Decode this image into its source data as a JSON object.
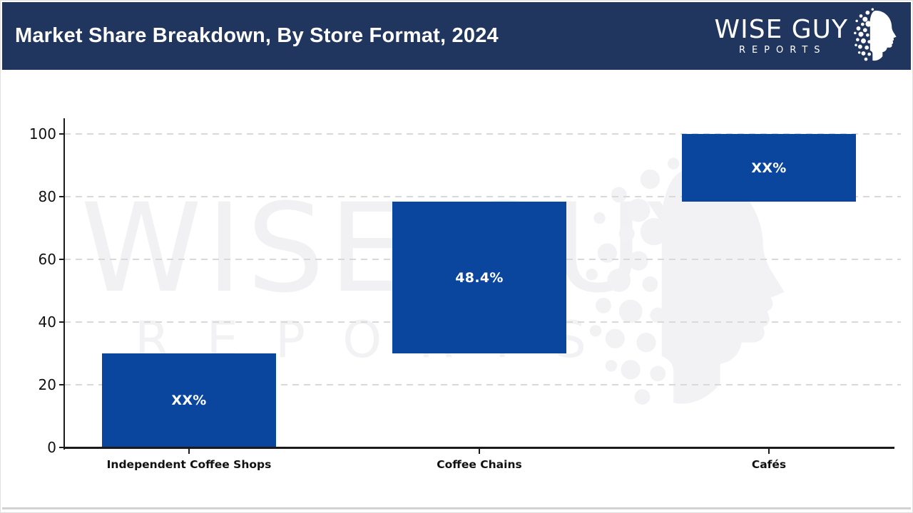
{
  "header": {
    "title": "Market Share Breakdown, By Store Format, 2024",
    "bg_color": "#21365f",
    "logo": {
      "wordmark": "WISE GUY",
      "subtext": "REPORTS"
    }
  },
  "watermark": {
    "wordmark": "WISE GUY",
    "subtext": "REPORTS"
  },
  "chart_data": {
    "type": "bar",
    "subtype": "floating-segment-bars",
    "title": "Market Share Breakdown, By Store Format, 2024",
    "categories": [
      "Independent Coffee Shops",
      "Coffee Chains",
      "Cafés"
    ],
    "segments": [
      {
        "category": "Independent Coffee Shops",
        "start": 0,
        "end": 30,
        "label": "XX%"
      },
      {
        "category": "Coffee Chains",
        "start": 30,
        "end": 78.4,
        "label": "48.4%"
      },
      {
        "category": "Cafés",
        "start": 78.4,
        "end": 100,
        "label": "XX%"
      }
    ],
    "ylim": [
      0,
      100
    ],
    "yticks": [
      0,
      20,
      40,
      60,
      80,
      100
    ],
    "bar_color": "#0a469e",
    "axis_color": "#1a1a1a",
    "grid": {
      "horizontal": true,
      "style": "dashed",
      "color": "#d9d9d9"
    },
    "legend": null
  }
}
